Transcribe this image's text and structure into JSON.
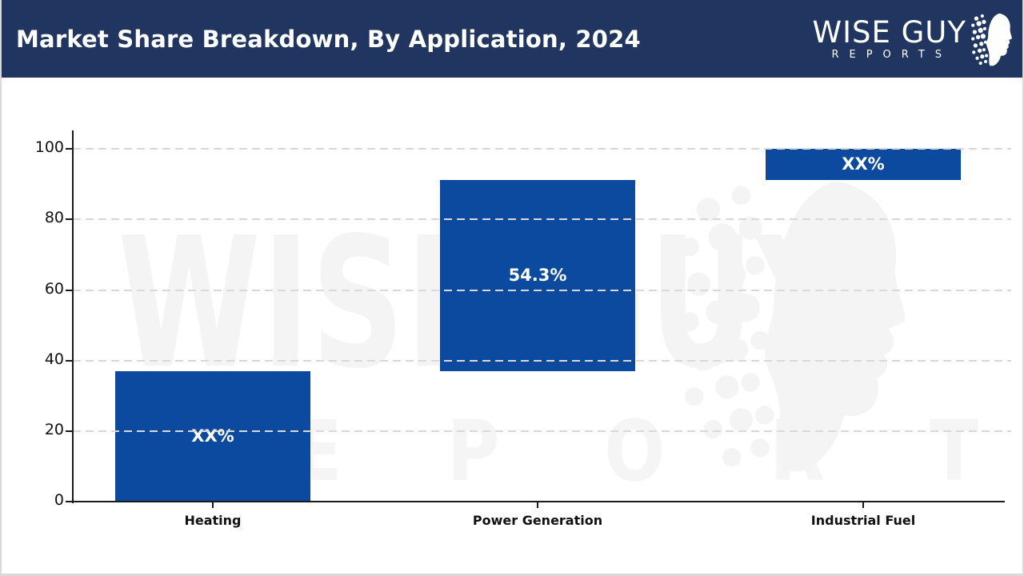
{
  "header": {
    "title": "Market Share Breakdown, By Application, 2024",
    "logo": {
      "line1": "WISE GUY",
      "line2": "REPORTS"
    }
  },
  "watermark": {
    "line1": "WISE GUY",
    "line2": "R E P O R T S"
  },
  "colors": {
    "header_bg": "#203661",
    "bar": "#0b4a9e",
    "grid": "#d9d9d9",
    "axis": "#1a1a1a",
    "bar_label": "#ffffff",
    "watermark": "#f4f4f4"
  },
  "chart_data": {
    "type": "bar",
    "subtype": "waterfall",
    "title": "Market Share Breakdown, By Application, 2024",
    "xlabel": "",
    "ylabel": "",
    "categories": [
      "Heating",
      "Power Generation",
      "Industrial Fuel"
    ],
    "series": [
      {
        "name": "Market Share (%)",
        "segments": [
          {
            "category": "Heating",
            "from": 0,
            "to": 37,
            "label": "XX%"
          },
          {
            "category": "Power Generation",
            "from": 37,
            "to": 91.3,
            "label": "54.3%"
          },
          {
            "category": "Industrial Fuel",
            "from": 91.3,
            "to": 100,
            "label": "XX%"
          }
        ]
      }
    ],
    "value_labels": [
      "XX%",
      "54.3%",
      "XX%"
    ],
    "ylim": [
      0,
      100
    ],
    "yticks": [
      0,
      20,
      40,
      60,
      80,
      100
    ],
    "grid": "horizontal-dashed",
    "grid_above_bars": true,
    "legend": "none",
    "bar_color": "#0b4a9e"
  }
}
